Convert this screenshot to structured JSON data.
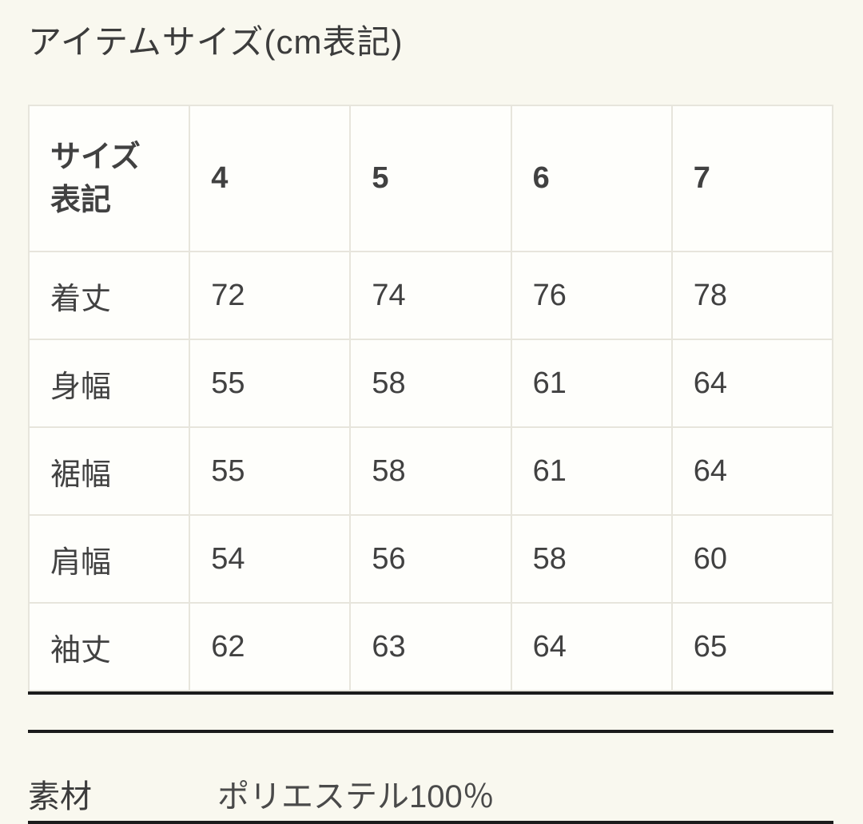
{
  "page": {
    "title": "アイテムサイズ(cm表記)"
  },
  "size_table": {
    "header_label_line1": "サイズ",
    "header_label_line2": "表記",
    "sizes": [
      "4",
      "5",
      "6",
      "7"
    ],
    "rows": [
      {
        "label": "着丈",
        "values": [
          "72",
          "74",
          "76",
          "78"
        ]
      },
      {
        "label": "身幅",
        "values": [
          "55",
          "58",
          "61",
          "64"
        ]
      },
      {
        "label": "裾幅",
        "values": [
          "55",
          "58",
          "61",
          "64"
        ]
      },
      {
        "label": "肩幅",
        "values": [
          "54",
          "56",
          "58",
          "60"
        ]
      },
      {
        "label": "袖丈",
        "values": [
          "62",
          "63",
          "64",
          "65"
        ]
      }
    ]
  },
  "material": {
    "label": "素材",
    "value": "ポリエステル100％"
  },
  "colors": {
    "page_background": "#f9f8ef",
    "cell_background": "#fefefb",
    "table_border": "#e7e5dc",
    "divider_black": "#1b1b1b",
    "text": "#3f3f3f"
  }
}
